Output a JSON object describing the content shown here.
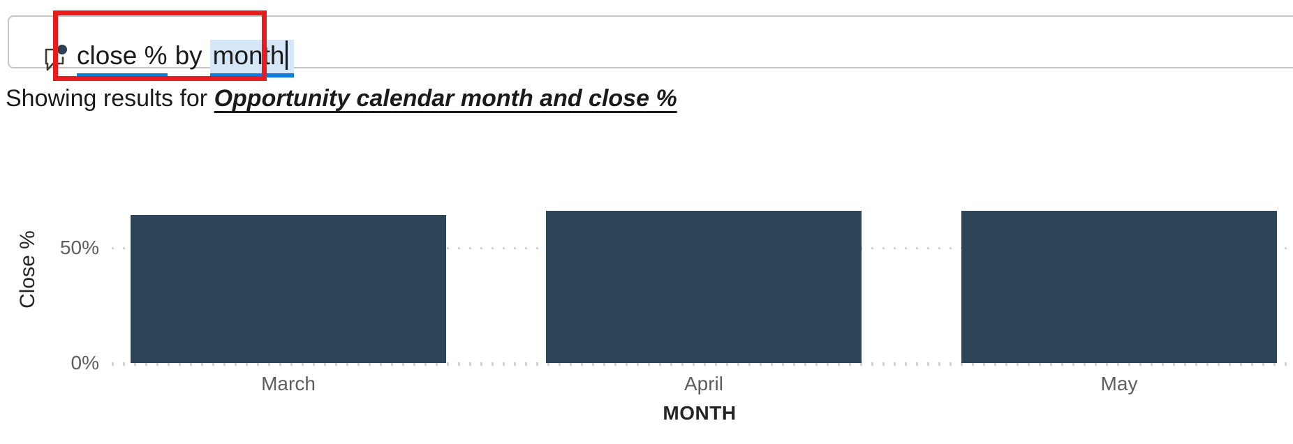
{
  "colors": {
    "bar_fill": "#2c4558",
    "token_underline_blue": "#0f7cdb",
    "token_highlight_blue": "#d4e6f8",
    "annotation_red": "#e81c1c",
    "grid_gray": "#d2d1cf",
    "axis_text_gray": "#605e5c",
    "dark_text": "#252423"
  },
  "qna_bar": {
    "icon": "qna-comment-icon",
    "tokens": [
      {
        "text": "close %",
        "style": "recognized-underlined"
      },
      {
        "text": "by",
        "style": "plain"
      },
      {
        "text": "month",
        "style": "recognized-underlined-highlighted"
      }
    ]
  },
  "annotation": {
    "shape": "red-rectangle",
    "purpose": "highlights the typed query in the question box"
  },
  "results_caption": {
    "prefix": "Showing results for ",
    "restatement": "Opportunity calendar month and close %"
  },
  "chart_data": {
    "type": "bar",
    "title": "",
    "categories": [
      "March",
      "April",
      "May"
    ],
    "values": [
      64,
      66,
      66
    ],
    "xlabel": "MONTH",
    "ylabel": "Close %",
    "yticks": [
      {
        "label": "0%",
        "value": 0
      },
      {
        "label": "50%",
        "value": 50
      }
    ],
    "ylim": [
      0,
      67
    ],
    "grid": "dotted-horizontal",
    "legend_position": "none"
  }
}
